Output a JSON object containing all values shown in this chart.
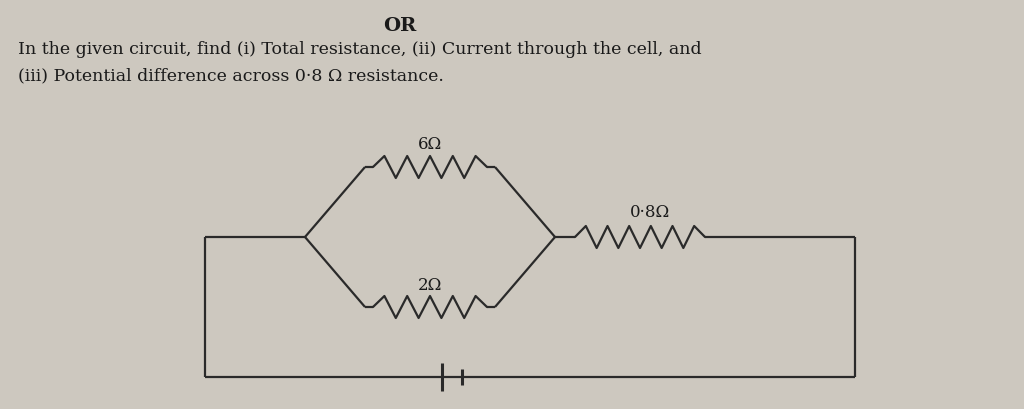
{
  "title": "OR",
  "problem_text_line1": "In the given circuit, find (i) Total resistance, (ii) Current through the cell, and",
  "problem_text_line2": "(iii) Potential difference across 0·8 Ω resistance.",
  "bg_color": "#cdc8bf",
  "text_color": "#1a1a1a",
  "line_color": "#2a2a2a",
  "r1_label": "6Ω",
  "r2_label": "2Ω",
  "r3_label": "0·8Ω",
  "font_size_title": 14,
  "font_size_text": 12.5,
  "font_size_labels": 12
}
